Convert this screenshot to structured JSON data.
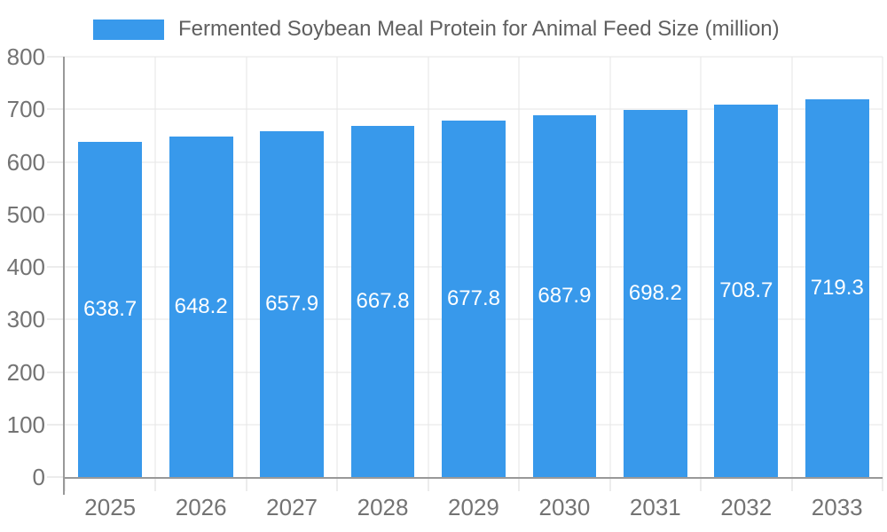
{
  "chart_data": {
    "type": "bar",
    "title": "Fermented Soybean Meal Protein for Animal Feed Size (million)",
    "categories": [
      "2025",
      "2026",
      "2027",
      "2028",
      "2029",
      "2030",
      "2031",
      "2032",
      "2033"
    ],
    "values": [
      638.7,
      648.2,
      657.9,
      667.8,
      677.8,
      687.9,
      698.2,
      708.7,
      719.3
    ],
    "xlabel": "",
    "ylabel": "",
    "ylim": [
      0,
      800
    ],
    "ytick_step": 100,
    "grid": true,
    "legend_position": "top-left",
    "value_label_position": "inside-center",
    "colors": {
      "bar": "#3899EB",
      "bar_label": "#FFFFFF",
      "axis_line": "#999999",
      "tick": "#D9D9D9",
      "grid": "#E6E6E6",
      "axis_text": "#737373",
      "legend_text": "#5F5F5F",
      "background": "#FFFFFF"
    }
  }
}
